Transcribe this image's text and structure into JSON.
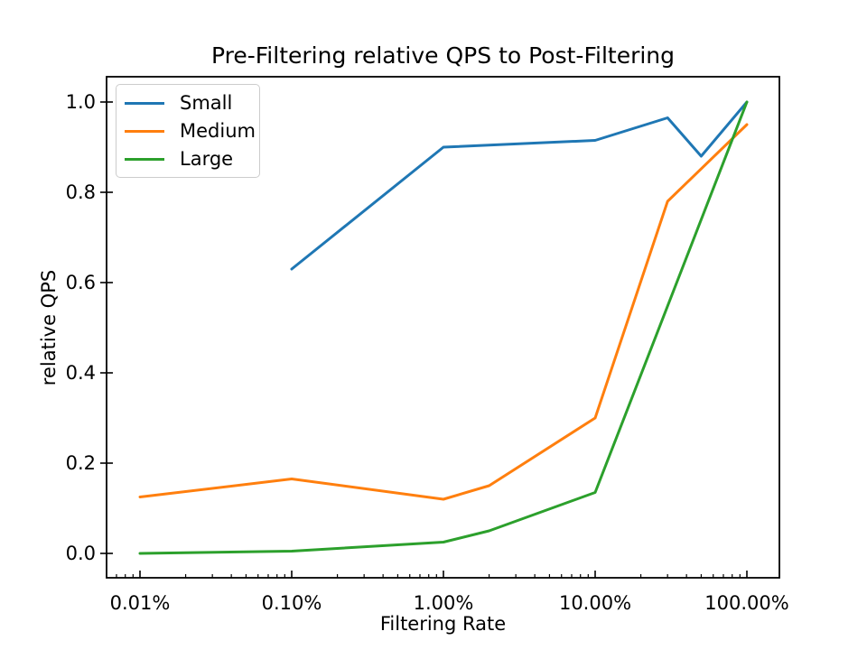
{
  "chart_data": {
    "type": "line",
    "title": "Pre-Filtering relative QPS to Post-Filtering",
    "xlabel": "Filtering Rate",
    "ylabel": "relative QPS",
    "x_scale": "log",
    "x_unit": "percent",
    "x_tick_values": [
      0.01,
      0.1,
      1,
      10,
      100
    ],
    "x_tick_labels": [
      "0.01%",
      "0.10%",
      "1.00%",
      "10.00%",
      "100.00%"
    ],
    "y_tick_values": [
      0.0,
      0.2,
      0.4,
      0.6,
      0.8,
      1.0
    ],
    "y_tick_labels": [
      "0.0",
      "0.2",
      "0.4",
      "0.6",
      "0.8",
      "1.0"
    ],
    "xlim_percent": [
      0.006,
      163
    ],
    "ylim": [
      -0.054,
      1.046
    ],
    "grid": false,
    "legend_position": "upper left",
    "series": [
      {
        "name": "Small",
        "color": "#1f77b4",
        "points": [
          [
            0.1,
            0.63
          ],
          [
            1,
            0.9
          ],
          [
            10,
            0.915
          ],
          [
            30,
            0.965
          ],
          [
            50,
            0.88
          ],
          [
            100,
            1.0
          ]
        ]
      },
      {
        "name": "Medium",
        "color": "#ff7f0e",
        "points": [
          [
            0.01,
            0.125
          ],
          [
            0.1,
            0.165
          ],
          [
            1,
            0.12
          ],
          [
            2,
            0.15
          ],
          [
            10,
            0.3
          ],
          [
            30,
            0.78
          ],
          [
            100,
            0.95
          ]
        ]
      },
      {
        "name": "Large",
        "color": "#2ca02c",
        "points": [
          [
            0.01,
            0.0
          ],
          [
            0.1,
            0.005
          ],
          [
            1,
            0.025
          ],
          [
            2,
            0.05
          ],
          [
            10,
            0.135
          ],
          [
            100,
            1.0
          ]
        ]
      }
    ]
  }
}
